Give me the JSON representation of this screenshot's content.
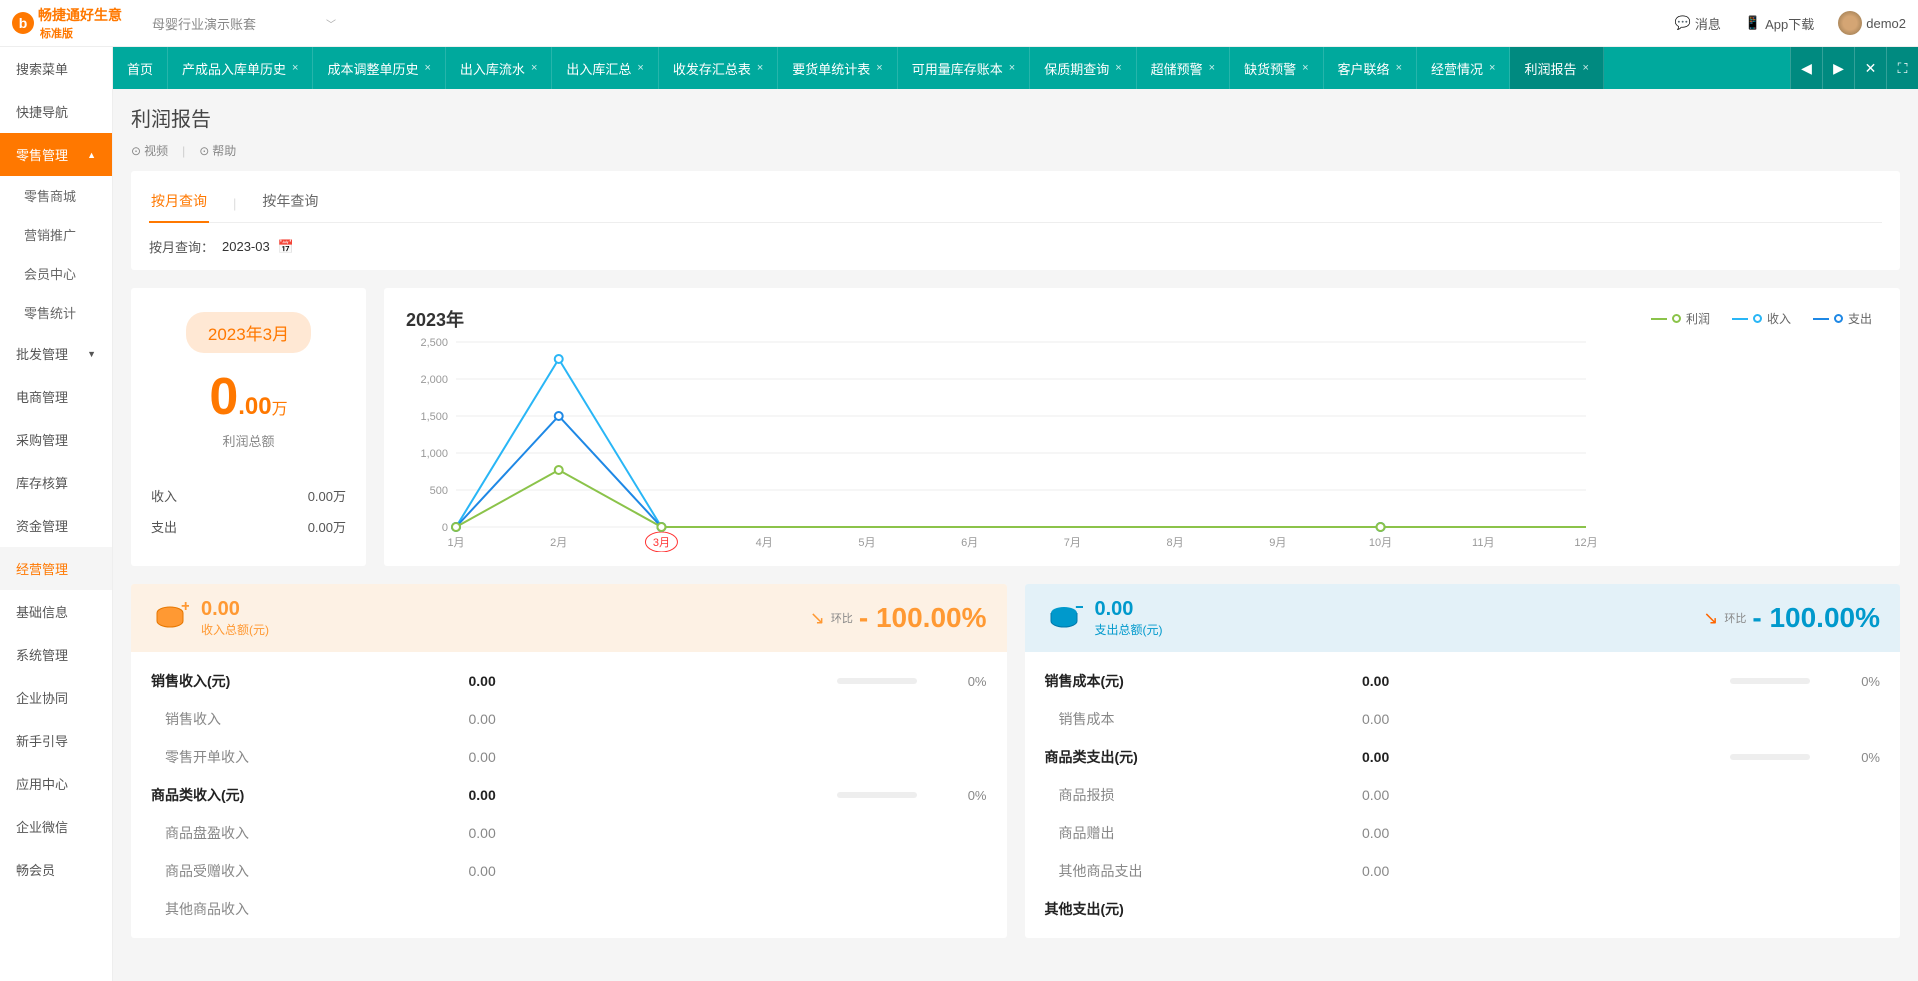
{
  "header": {
    "logo_text": "畅捷通好生意",
    "logo_sub": "标准版",
    "account_name": "母婴行业演示账套",
    "msg_label": "消息",
    "app_label": "App下载",
    "user_name": "demo2"
  },
  "sidebar": {
    "items": [
      {
        "label": "搜索菜单",
        "type": "plain"
      },
      {
        "label": "快捷导航",
        "type": "plain"
      },
      {
        "label": "零售管理",
        "type": "active",
        "caret": "▲"
      },
      {
        "label": "零售商城",
        "type": "sub"
      },
      {
        "label": "营销推广",
        "type": "sub"
      },
      {
        "label": "会员中心",
        "type": "sub"
      },
      {
        "label": "零售统计",
        "type": "sub"
      },
      {
        "label": "批发管理",
        "type": "plain",
        "caret": "▼"
      },
      {
        "label": "电商管理",
        "type": "plain"
      },
      {
        "label": "采购管理",
        "type": "plain"
      },
      {
        "label": "库存核算",
        "type": "plain"
      },
      {
        "label": "资金管理",
        "type": "plain"
      },
      {
        "label": "经营管理",
        "type": "highlight"
      },
      {
        "label": "基础信息",
        "type": "plain"
      },
      {
        "label": "系统管理",
        "type": "plain"
      },
      {
        "label": "企业协同",
        "type": "plain"
      },
      {
        "label": "新手引导",
        "type": "plain"
      },
      {
        "label": "应用中心",
        "type": "plain"
      },
      {
        "label": "企业微信",
        "type": "plain"
      },
      {
        "label": "畅会员",
        "type": "plain"
      }
    ]
  },
  "tabs": [
    {
      "label": "首页",
      "closable": false
    },
    {
      "label": "产成品入库单历史",
      "closable": true
    },
    {
      "label": "成本调整单历史",
      "closable": true
    },
    {
      "label": "出入库流水",
      "closable": true
    },
    {
      "label": "出入库汇总",
      "closable": true
    },
    {
      "label": "收发存汇总表",
      "closable": true
    },
    {
      "label": "要货单统计表",
      "closable": true
    },
    {
      "label": "可用量库存账本",
      "closable": true
    },
    {
      "label": "保质期查询",
      "closable": true
    },
    {
      "label": "超储预警",
      "closable": true
    },
    {
      "label": "缺货预警",
      "closable": true
    },
    {
      "label": "客户联络",
      "closable": true
    },
    {
      "label": "经营情况",
      "closable": true
    },
    {
      "label": "利润报告",
      "closable": true,
      "active": true
    }
  ],
  "page": {
    "title": "利润报告",
    "video_link": "视频",
    "help_link": "帮助",
    "query_tabs": [
      "按月查询",
      "按年查询"
    ],
    "active_query_tab": 0,
    "date_label": "按月查询：",
    "date_value": "2023-03"
  },
  "summary": {
    "badge": "2023年3月",
    "big_int": "0",
    "big_dec": ".00",
    "big_unit": "万",
    "label": "利润总额",
    "rows": [
      {
        "k": "收入",
        "v": "0.00万"
      },
      {
        "k": "支出",
        "v": "0.00万"
      }
    ]
  },
  "chart": {
    "title": "2023年",
    "legend": [
      {
        "label": "利润",
        "color": "#8bc34a"
      },
      {
        "label": "收入",
        "color": "#29b6f6"
      },
      {
        "label": "支出",
        "color": "#1e88e5"
      }
    ],
    "x_labels": [
      "1月",
      "2月",
      "3月",
      "4月",
      "5月",
      "6月",
      "7月",
      "8月",
      "9月",
      "10月",
      "11月",
      "12月"
    ],
    "highlight_x": 2,
    "y_ticks": [
      0,
      500,
      1000,
      1500,
      2000,
      2500
    ],
    "y_max": 2500,
    "series": {
      "profit": [
        0,
        770,
        0,
        0,
        0,
        0,
        0,
        0,
        0,
        0,
        0,
        0
      ],
      "income": [
        0,
        2270,
        0,
        0,
        0,
        0,
        0,
        0,
        0,
        0,
        0,
        0
      ],
      "expense": [
        0,
        1500,
        0,
        0,
        0,
        0,
        0,
        0,
        0,
        0,
        0,
        0
      ]
    },
    "grid_color": "#eeeeee",
    "axis_color": "#cccccc",
    "text_color": "#999999",
    "colors": {
      "profit": "#8bc34a",
      "income": "#29b6f6",
      "expense": "#1e88e5"
    }
  },
  "income_panel": {
    "amount": "0.00",
    "sublabel": "收入总额(元)",
    "trend_label": "环比",
    "trend_value": "- 100.00%",
    "lines": [
      {
        "name": "销售收入(元)",
        "val": "0.00",
        "pct": "0%",
        "bold": true,
        "bar": true
      },
      {
        "name": "销售收入",
        "val": "0.00",
        "sub": true
      },
      {
        "name": "零售开单收入",
        "val": "0.00",
        "sub": true
      },
      {
        "name": "商品类收入(元)",
        "val": "0.00",
        "pct": "0%",
        "bold": true,
        "bar": true
      },
      {
        "name": "商品盘盈收入",
        "val": "0.00",
        "sub": true
      },
      {
        "name": "商品受赠收入",
        "val": "0.00",
        "sub": true
      },
      {
        "name": "其他商品收入",
        "val": "",
        "sub": true
      }
    ]
  },
  "expense_panel": {
    "amount": "0.00",
    "sublabel": "支出总额(元)",
    "trend_label": "环比",
    "trend_value": "- 100.00%",
    "lines": [
      {
        "name": "销售成本(元)",
        "val": "0.00",
        "pct": "0%",
        "bold": true,
        "bar": true
      },
      {
        "name": "销售成本",
        "val": "0.00",
        "sub": true
      },
      {
        "name": "商品类支出(元)",
        "val": "0.00",
        "pct": "0%",
        "bold": true,
        "bar": true
      },
      {
        "name": "商品报损",
        "val": "0.00",
        "sub": true
      },
      {
        "name": "商品赠出",
        "val": "0.00",
        "sub": true
      },
      {
        "name": "其他商品支出",
        "val": "0.00",
        "sub": true
      },
      {
        "name": "其他支出(元)",
        "val": "",
        "bold": true
      }
    ]
  }
}
